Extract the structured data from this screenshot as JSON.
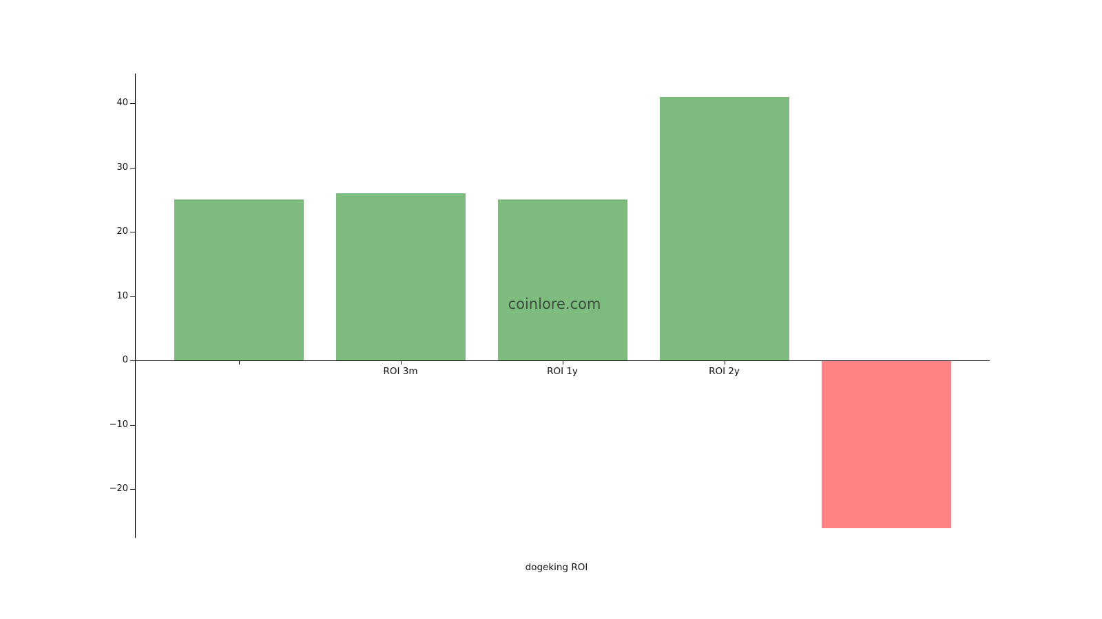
{
  "chart_data": {
    "type": "bar",
    "categories": [
      "",
      "ROI 3m",
      "ROI 1y",
      "ROI 2y",
      ""
    ],
    "values": [
      25,
      26,
      25,
      41,
      -26
    ],
    "title": "",
    "xlabel": "dogeking ROI",
    "ylabel": "",
    "ylim": [
      -27.6,
      44.6
    ],
    "yticks": [
      40,
      30,
      20,
      10,
      0,
      -10,
      -20
    ],
    "x_tick_visible": [
      true,
      true,
      true,
      true,
      false
    ],
    "grid": false,
    "legend": false,
    "watermark": "coinlore.com",
    "colors": {
      "positive_bar": "#7dbc7e",
      "negative_bar": "#ff8383",
      "axis": "#000000",
      "tick_text": "#111111"
    }
  }
}
